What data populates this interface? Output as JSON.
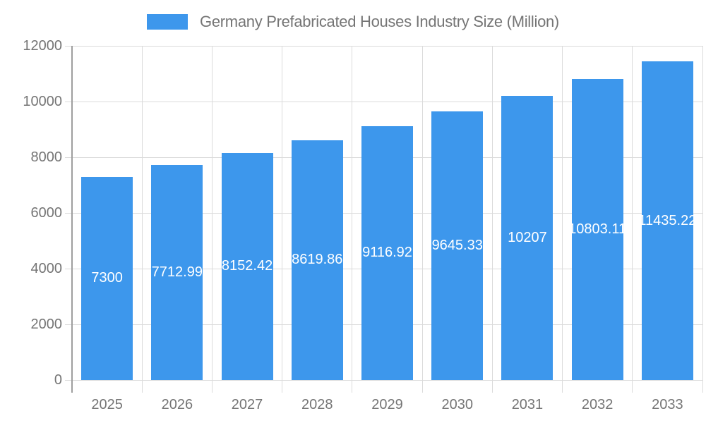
{
  "chart_data": {
    "type": "bar",
    "title": "Germany Prefabricated Houses Industry Size (Million)",
    "legend": {
      "position": "top",
      "label": "Germany Prefabricated Houses Industry Size (Million)"
    },
    "categories": [
      "2025",
      "2026",
      "2027",
      "2028",
      "2029",
      "2030",
      "2031",
      "2032",
      "2033"
    ],
    "series": [
      {
        "name": "Germany Prefabricated Houses Industry Size (Million)",
        "values": [
          7300,
          7712.99,
          8152.42,
          8619.86,
          9116.92,
          9645.33,
          10207,
          10803.11,
          11435.22
        ]
      }
    ],
    "bar_labels": [
      "7300",
      "7712.99",
      "8152.42",
      "8619.86",
      "9116.92",
      "9645.33",
      "10207",
      "10803.11",
      "11435.22"
    ],
    "xlabel": "",
    "ylabel": "",
    "ylim": [
      0,
      12000
    ],
    "yticks": [
      0,
      2000,
      4000,
      6000,
      8000,
      10000,
      12000
    ],
    "grid": true,
    "colors": {
      "bar": "#3D97EC",
      "bar_label_text": "#FFFFFF",
      "grid_line": "#DBDBDB",
      "axis_line": "#9E9E9E",
      "axis_text": "#757575",
      "background": "#FFFFFF"
    }
  }
}
